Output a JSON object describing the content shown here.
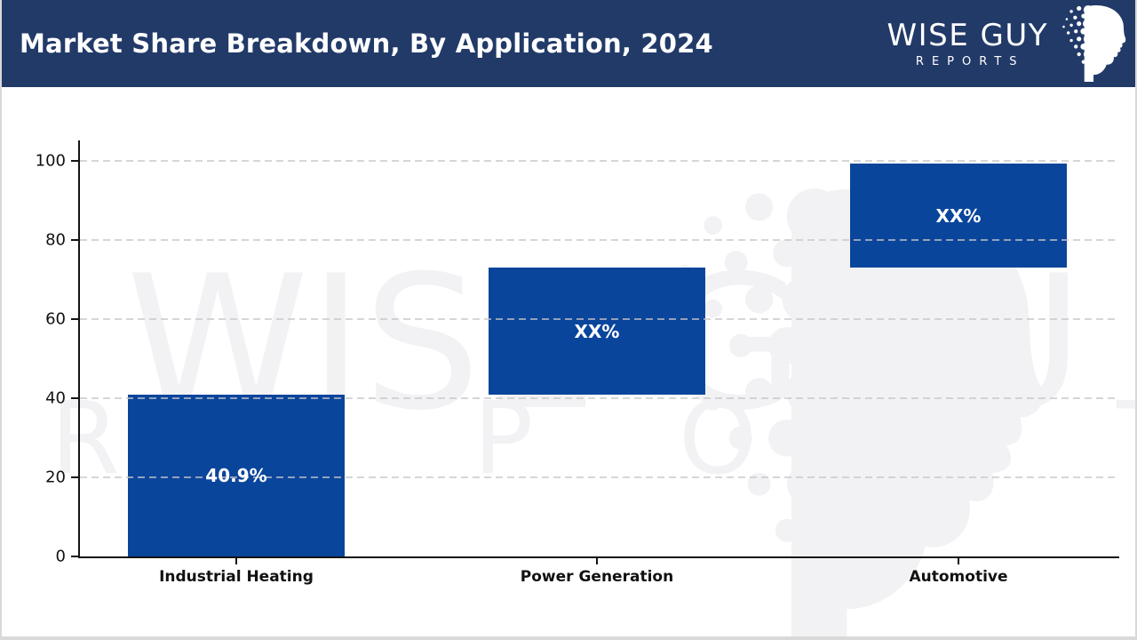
{
  "header": {
    "title": "Market Share Breakdown, By Application, 2024",
    "logo": {
      "line1": "WISE GUY",
      "line2": "REPORTS"
    }
  },
  "watermark": {
    "part1": "WISE",
    "part2": "G U Y",
    "line2": "R E P O R T S"
  },
  "colors": {
    "header_bg": "#223a68",
    "bar": "#0a459c",
    "axis": "#141414",
    "watermark": "#f2f2f4"
  },
  "chart_data": {
    "type": "bar",
    "subtype": "floating-waterfall",
    "title": "Market Share Breakdown, By Application, 2024",
    "categories": [
      "Industrial Heating",
      "Power Generation",
      "Automotive"
    ],
    "segments": [
      {
        "category": "Industrial Heating",
        "start": 0,
        "end": 40.9,
        "value_label": "40.9%"
      },
      {
        "category": "Power Generation",
        "start": 40.9,
        "end": 73.0,
        "value_label": "XX%"
      },
      {
        "category": "Automotive",
        "start": 73.0,
        "end": 99.3,
        "value_label": "XX%"
      }
    ],
    "yticks": [
      0,
      20,
      40,
      60,
      80,
      100
    ],
    "ylim": [
      0,
      105
    ],
    "xlabel": "",
    "ylabel": "",
    "grid": "horizontal-dashed",
    "legend": "none",
    "bar_color": "#0a459c"
  }
}
